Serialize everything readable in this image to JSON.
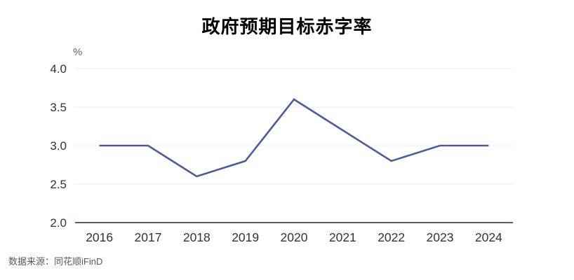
{
  "header": {
    "title": "政府预期目标赤字率"
  },
  "footer": {
    "source_label": "数据来源：同花顺iFinD"
  },
  "chart_data": {
    "type": "line",
    "title": "政府预期目标赤字率",
    "unit_label": "%",
    "categories": [
      "2016",
      "2017",
      "2018",
      "2019",
      "2020",
      "2021",
      "2022",
      "2023",
      "2024"
    ],
    "series": [
      {
        "name": "政府预期目标赤字率",
        "values": [
          3.0,
          3.0,
          2.6,
          2.8,
          3.6,
          3.2,
          2.8,
          3.0,
          3.0
        ]
      }
    ],
    "ylim": [
      2.0,
      4.0
    ],
    "yticks": [
      {
        "value": 2.0,
        "label": "2.0"
      },
      {
        "value": 2.5,
        "label": "2.5"
      },
      {
        "value": 3.0,
        "label": "3.0"
      },
      {
        "value": 3.5,
        "label": "3.5"
      },
      {
        "value": 4.0,
        "label": "4.0"
      }
    ],
    "grid": true,
    "legend_position": "none",
    "colors": {
      "line": "#4d5c99",
      "axis": "#53607b",
      "gridline": "#ececec",
      "tick_text": "#333333",
      "unit_text": "#666666"
    }
  }
}
